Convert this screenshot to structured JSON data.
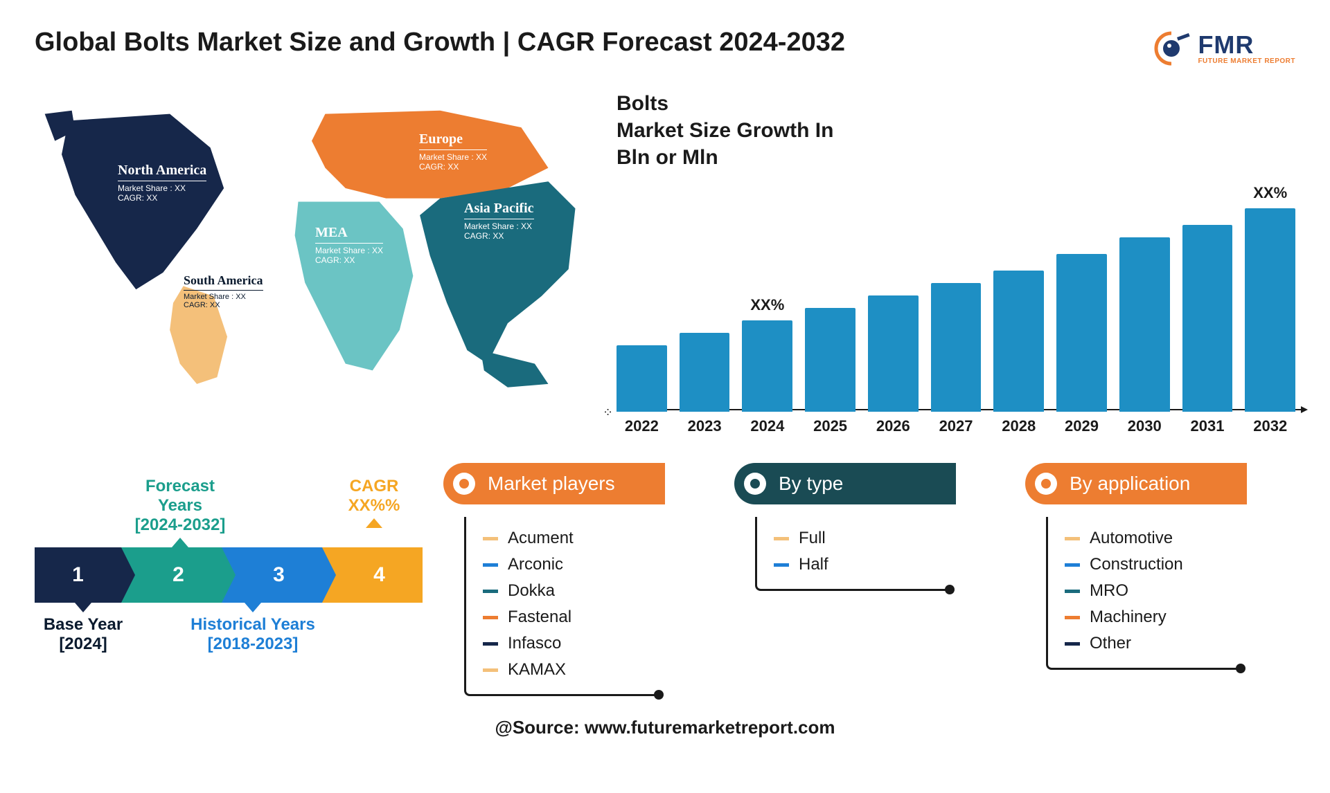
{
  "title": "Global Bolts Market Size and Growth | CAGR Forecast 2024-2032",
  "logo": {
    "fmr": "FMR",
    "sub": "FUTURE MARKET REPORT"
  },
  "map": {
    "regions": [
      {
        "name": "North America",
        "share": "Market Share : XX",
        "cagr": "CAGR: XX",
        "color": "#16274a"
      },
      {
        "name": "South America",
        "share": "Market Share : XX",
        "cagr": "CAGR: XX",
        "color": "#f4c07a"
      },
      {
        "name": "Europe",
        "share": "Market Share : XX",
        "cagr": "CAGR: XX",
        "color": "#ed7d31"
      },
      {
        "name": "MEA",
        "share": "Market Share : XX",
        "cagr": "CAGR: XX",
        "color": "#6bc4c4"
      },
      {
        "name": "Asia Pacific",
        "share": "Market Share : XX",
        "cagr": "CAGR: XX",
        "color": "#1a6b7d"
      }
    ]
  },
  "chart": {
    "title_l1": "Bolts",
    "title_l2": "Market Size Growth In",
    "title_l3": "Bln or Mln",
    "type": "bar",
    "bar_color": "#1e8fc4",
    "years": [
      "2022",
      "2023",
      "2024",
      "2025",
      "2026",
      "2027",
      "2028",
      "2029",
      "2030",
      "2031",
      "2032"
    ],
    "heights_pct": [
      32,
      38,
      44,
      50,
      56,
      62,
      68,
      76,
      84,
      90,
      98
    ],
    "label_2024": "XX%",
    "label_2032": "XX%"
  },
  "timeline": {
    "forecast_l1": "Forecast Years",
    "forecast_l2": "[2024-2032]",
    "cagr_l1": "CAGR",
    "cagr_l2": "XX%%",
    "base_l1": "Base Year",
    "base_l2": "[2024]",
    "hist_l1": "Historical Years",
    "hist_l2": "[2018-2023]",
    "segs": [
      {
        "n": "1",
        "bg": "#16274a"
      },
      {
        "n": "2",
        "bg": "#1b9e8c"
      },
      {
        "n": "3",
        "bg": "#1e7fd6"
      },
      {
        "n": "4",
        "bg": "#f5a623"
      }
    ]
  },
  "categories": [
    {
      "title": "Market players",
      "pill_bg": "#ed7d31",
      "dot_inner": "#ed7d31",
      "items": [
        {
          "label": "Acument",
          "dash": "#f4c07a"
        },
        {
          "label": "Arconic",
          "dash": "#1e7fd6"
        },
        {
          "label": "Dokka",
          "dash": "#1a6b7d"
        },
        {
          "label": "Fastenal",
          "dash": "#ed7d31"
        },
        {
          "label": "Infasco",
          "dash": "#16274a"
        },
        {
          "label": "KAMAX",
          "dash": "#f4c07a"
        }
      ]
    },
    {
      "title": "By type",
      "pill_bg": "#1a4b54",
      "dot_inner": "#1a4b54",
      "items": [
        {
          "label": "Full",
          "dash": "#f4c07a"
        },
        {
          "label": "Half",
          "dash": "#1e7fd6"
        }
      ]
    },
    {
      "title": "By application",
      "pill_bg": "#ed7d31",
      "dot_inner": "#ed7d31",
      "items": [
        {
          "label": "Automotive",
          "dash": "#f4c07a"
        },
        {
          "label": "Construction",
          "dash": "#1e7fd6"
        },
        {
          "label": "MRO",
          "dash": "#1a6b7d"
        },
        {
          "label": "Machinery",
          "dash": "#ed7d31"
        },
        {
          "label": "Other",
          "dash": "#16274a"
        }
      ]
    }
  ],
  "source": "@Source: www.futuremarketreport.com"
}
